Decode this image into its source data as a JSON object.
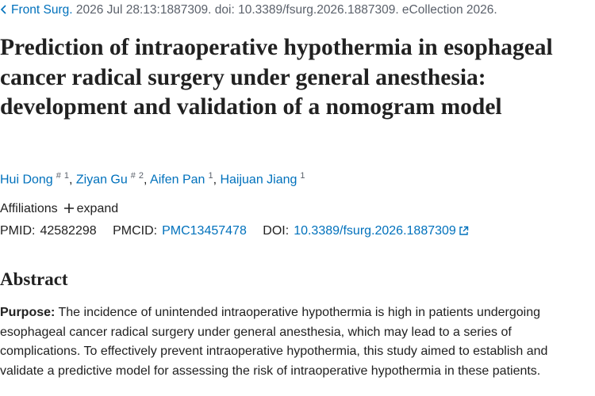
{
  "citation": {
    "journal": "Front Surg.",
    "details": " 2026 Jul 28:13:1887309. doi: 10.3389/fsurg.2026.1887309. eCollection 2026."
  },
  "title": "Prediction of intraoperative hypothermia in esophageal cancer radical surgery under general anesthesia: development and validation of a nomogram model",
  "authors": {
    "separator": ",",
    "list": [
      {
        "name": "Hui Dong",
        "marks": [
          "#",
          "1"
        ]
      },
      {
        "name": "Ziyan Gu",
        "marks": [
          "#",
          "2"
        ]
      },
      {
        "name": "Aifen Pan",
        "marks": [
          "1"
        ]
      },
      {
        "name": "Haijuan Jiang",
        "marks": [
          "1"
        ]
      }
    ]
  },
  "affiliations": {
    "label": "Affiliations",
    "toggle": "expand"
  },
  "identifiers": {
    "pmid": {
      "label": "PMID:",
      "value": "42582298"
    },
    "pmcid": {
      "label": "PMCID:",
      "value": "PMC13457478"
    },
    "doi": {
      "label": "DOI:",
      "value": "10.3389/fsurg.2026.1887309"
    }
  },
  "abstract": {
    "heading": "Abstract",
    "label": "Purpose:",
    "text": " The incidence of unintended intraoperative hypothermia is high in patients undergoing esophageal cancer radical surgery under general anesthesia, which may lead to a series of complications. To effectively prevent intraoperative hypothermia, this study aimed to establish and validate a predictive model for assessing the risk of intraoperative hypothermia in these patients."
  }
}
